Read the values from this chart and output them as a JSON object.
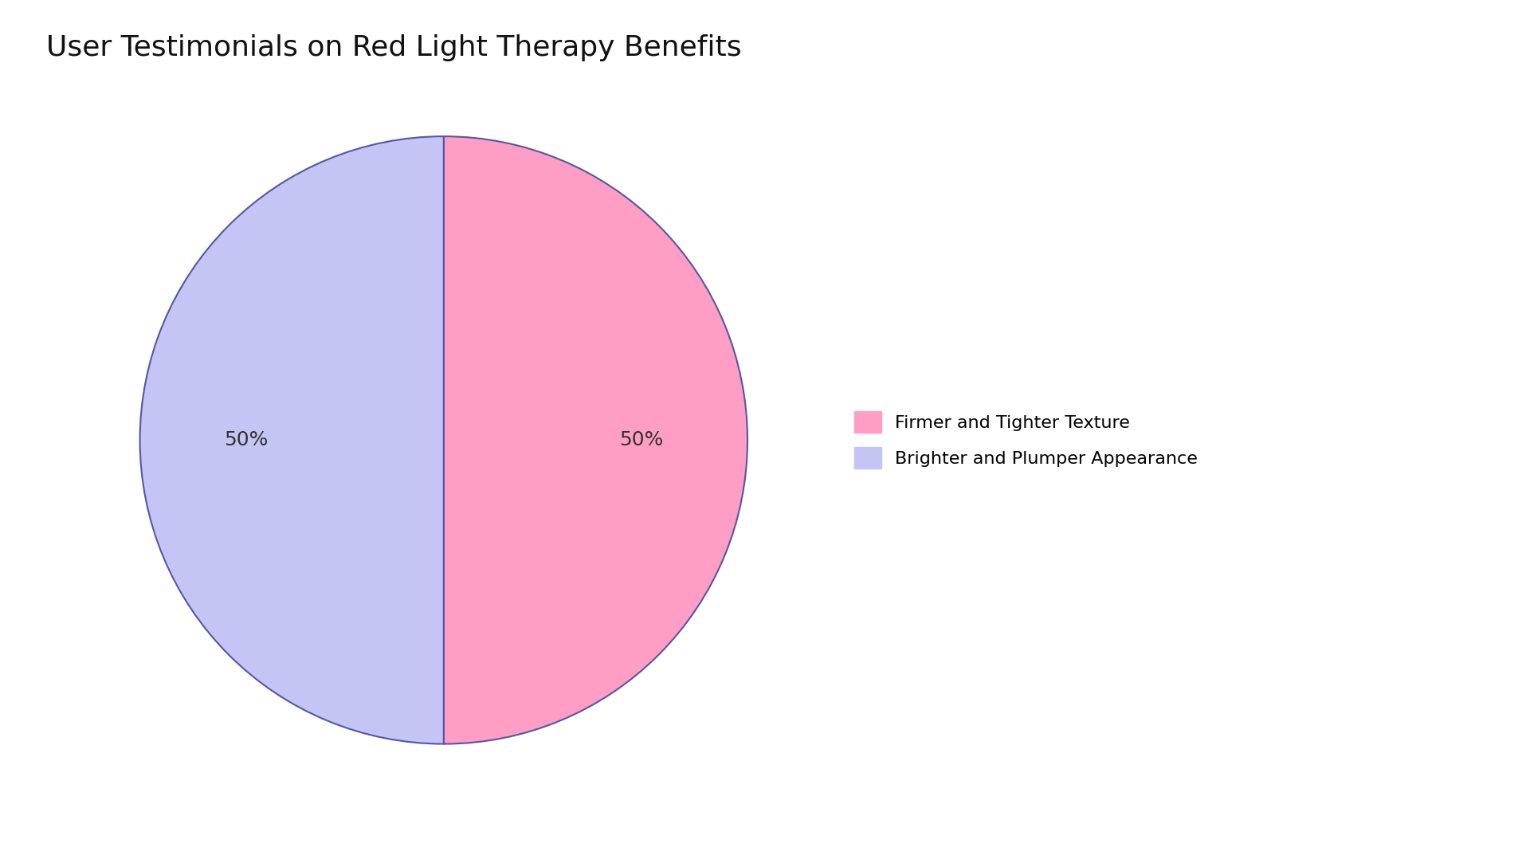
{
  "title": "User Testimonials on Red Light Therapy Benefits",
  "labels": [
    "Firmer and Tighter Texture",
    "Brighter and Plumper Appearance"
  ],
  "values": [
    50,
    50
  ],
  "colors": [
    "#FF9EC4",
    "#C5C5F5"
  ],
  "edge_color": "#5555AA",
  "edge_width": 1.5,
  "title_fontsize": 26,
  "legend_fontsize": 16,
  "pct_fontsize": 18,
  "background_color": "#ffffff",
  "startangle": 90,
  "pct_distance": 0.65
}
